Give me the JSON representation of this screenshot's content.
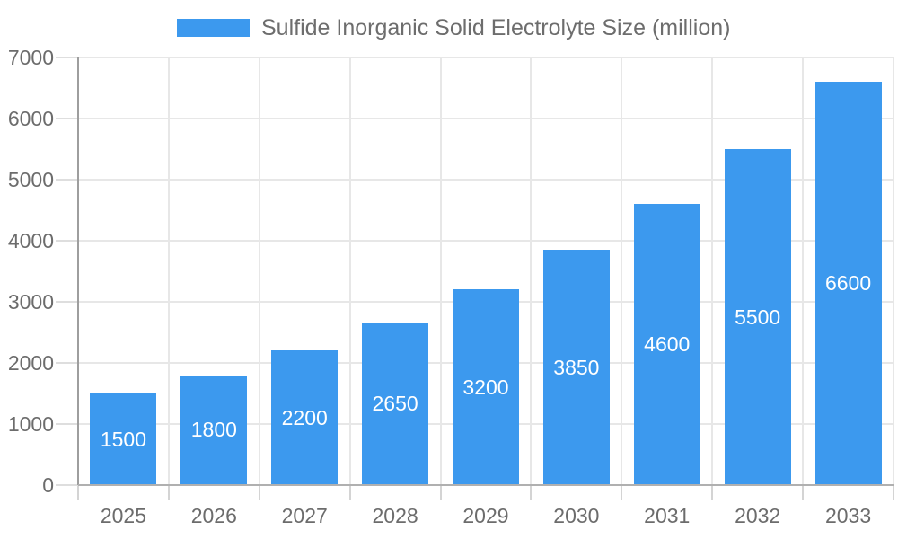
{
  "chart_data": {
    "type": "bar",
    "title": "Sulfide Inorganic Solid Electrolyte Size (million)",
    "categories": [
      "2025",
      "2026",
      "2027",
      "2028",
      "2029",
      "2030",
      "2031",
      "2032",
      "2033"
    ],
    "values": [
      1500,
      1800,
      2200,
      2650,
      3200,
      3850,
      4600,
      5500,
      6600
    ],
    "series": [
      {
        "name": "Sulfide Inorganic Solid Electrolyte Size (million)",
        "values": [
          1500,
          1800,
          2200,
          2650,
          3200,
          3850,
          4600,
          5500,
          6600
        ]
      }
    ],
    "xlabel": "",
    "ylabel": "",
    "ylim": [
      0,
      7000
    ],
    "yticks": [
      0,
      1000,
      2000,
      3000,
      4000,
      5000,
      6000,
      7000
    ],
    "grid": true,
    "legend_position": "top",
    "value_labels": "inside-center",
    "bar_color": "#3C99EE",
    "value_label_color": "#ffffff",
    "axis_text_color": "#6c6c6c"
  },
  "legend": {
    "label": "Sulfide Inorganic Solid Electrolyte Size (million)",
    "swatch_color": "#3C99EE"
  }
}
